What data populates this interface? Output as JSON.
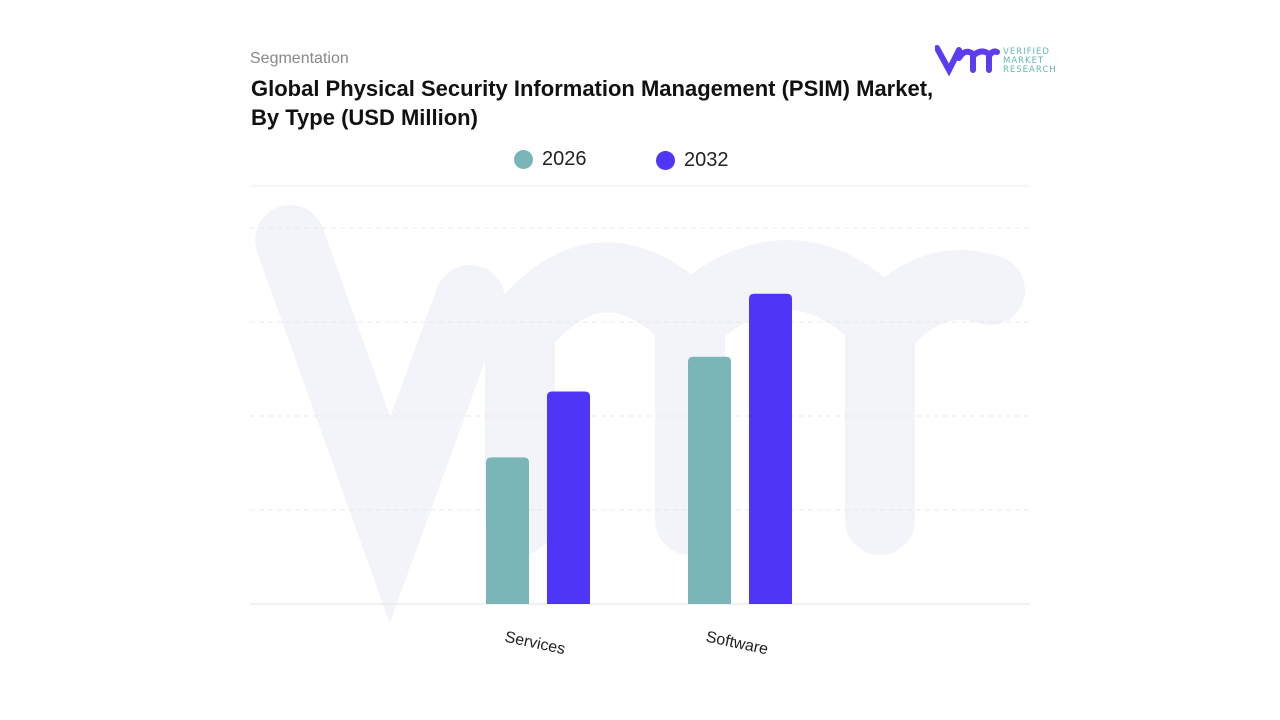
{
  "header": {
    "segment_label": "Segmentation",
    "title": "Global Physical Security Information Management (PSIM) Market, By Type (USD Million)"
  },
  "logo": {
    "text": "VERIFIED MARKET RESEARCH",
    "mark": "vmr"
  },
  "colors": {
    "series_2026": "#7ab5b8",
    "series_2032": "#4f35f5",
    "grid": "#e6e6e6",
    "watermark": "#f3f4fa",
    "logo_mark": "#5b3cf0",
    "logo_text": "#5fb8b0"
  },
  "chart_data": {
    "type": "bar",
    "title": "Global Physical Security Information Management (PSIM) Market, By Type (USD Million)",
    "categories": [
      "Services",
      "Software"
    ],
    "series": [
      {
        "name": "2026",
        "values": [
          1.56,
          2.63
        ]
      },
      {
        "name": "2032",
        "values": [
          2.26,
          3.3
        ]
      }
    ],
    "ylim": [
      0,
      4
    ],
    "grid": true,
    "legend": "top-center",
    "y_tick_labels_shown": false
  }
}
